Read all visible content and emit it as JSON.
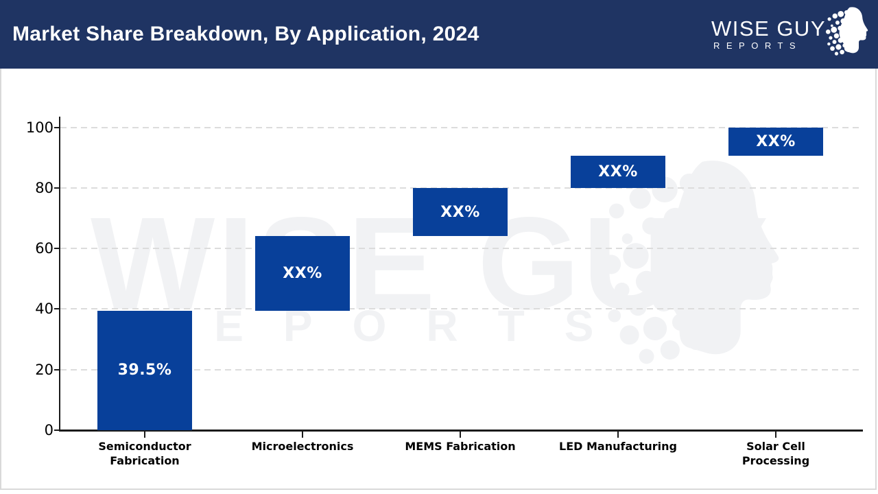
{
  "header": {
    "title": "Market Share Breakdown, By Application, 2024",
    "logo": {
      "name": "WISE GUY",
      "subname": "REPORTS"
    }
  },
  "watermark": {
    "name": "WISE GUY",
    "subname": "REPORTS"
  },
  "colors": {
    "header_bg": "#1f3463",
    "bar": "#08409a",
    "bar_label": "#ffffff",
    "gridline": "#dcdcdc",
    "axis": "#1a1a1a",
    "watermark": "#f1f2f4",
    "frame_border": "#d9d9d9"
  },
  "chart_data": {
    "type": "bar",
    "subtype": "waterfall",
    "title": "Market Share Breakdown, By Application, 2024",
    "unit": "percent",
    "categories": [
      "Semiconductor\nFabrication",
      "Microelectronics",
      "MEMS Fabrication",
      "LED Manufacturing",
      "Solar Cell\nProcessing"
    ],
    "segments": [
      {
        "category": "Semiconductor Fabrication",
        "start": 0,
        "end": 39.5,
        "label": "39.5%"
      },
      {
        "category": "Microelectronics",
        "start": 39.5,
        "end": 64,
        "label": "XX%"
      },
      {
        "category": "MEMS Fabrication",
        "start": 64,
        "end": 80,
        "label": "XX%"
      },
      {
        "category": "LED Manufacturing",
        "start": 80,
        "end": 90.5,
        "label": "XX%"
      },
      {
        "category": "Solar Cell Processing",
        "start": 90.5,
        "end": 100,
        "label": "XX%"
      }
    ],
    "yticks": [
      0,
      20,
      40,
      60,
      80,
      100
    ],
    "ylim": [
      0,
      103.5
    ],
    "xlabel": "",
    "ylabel": "",
    "grid": "dashed-horizontal",
    "legend": "none"
  }
}
